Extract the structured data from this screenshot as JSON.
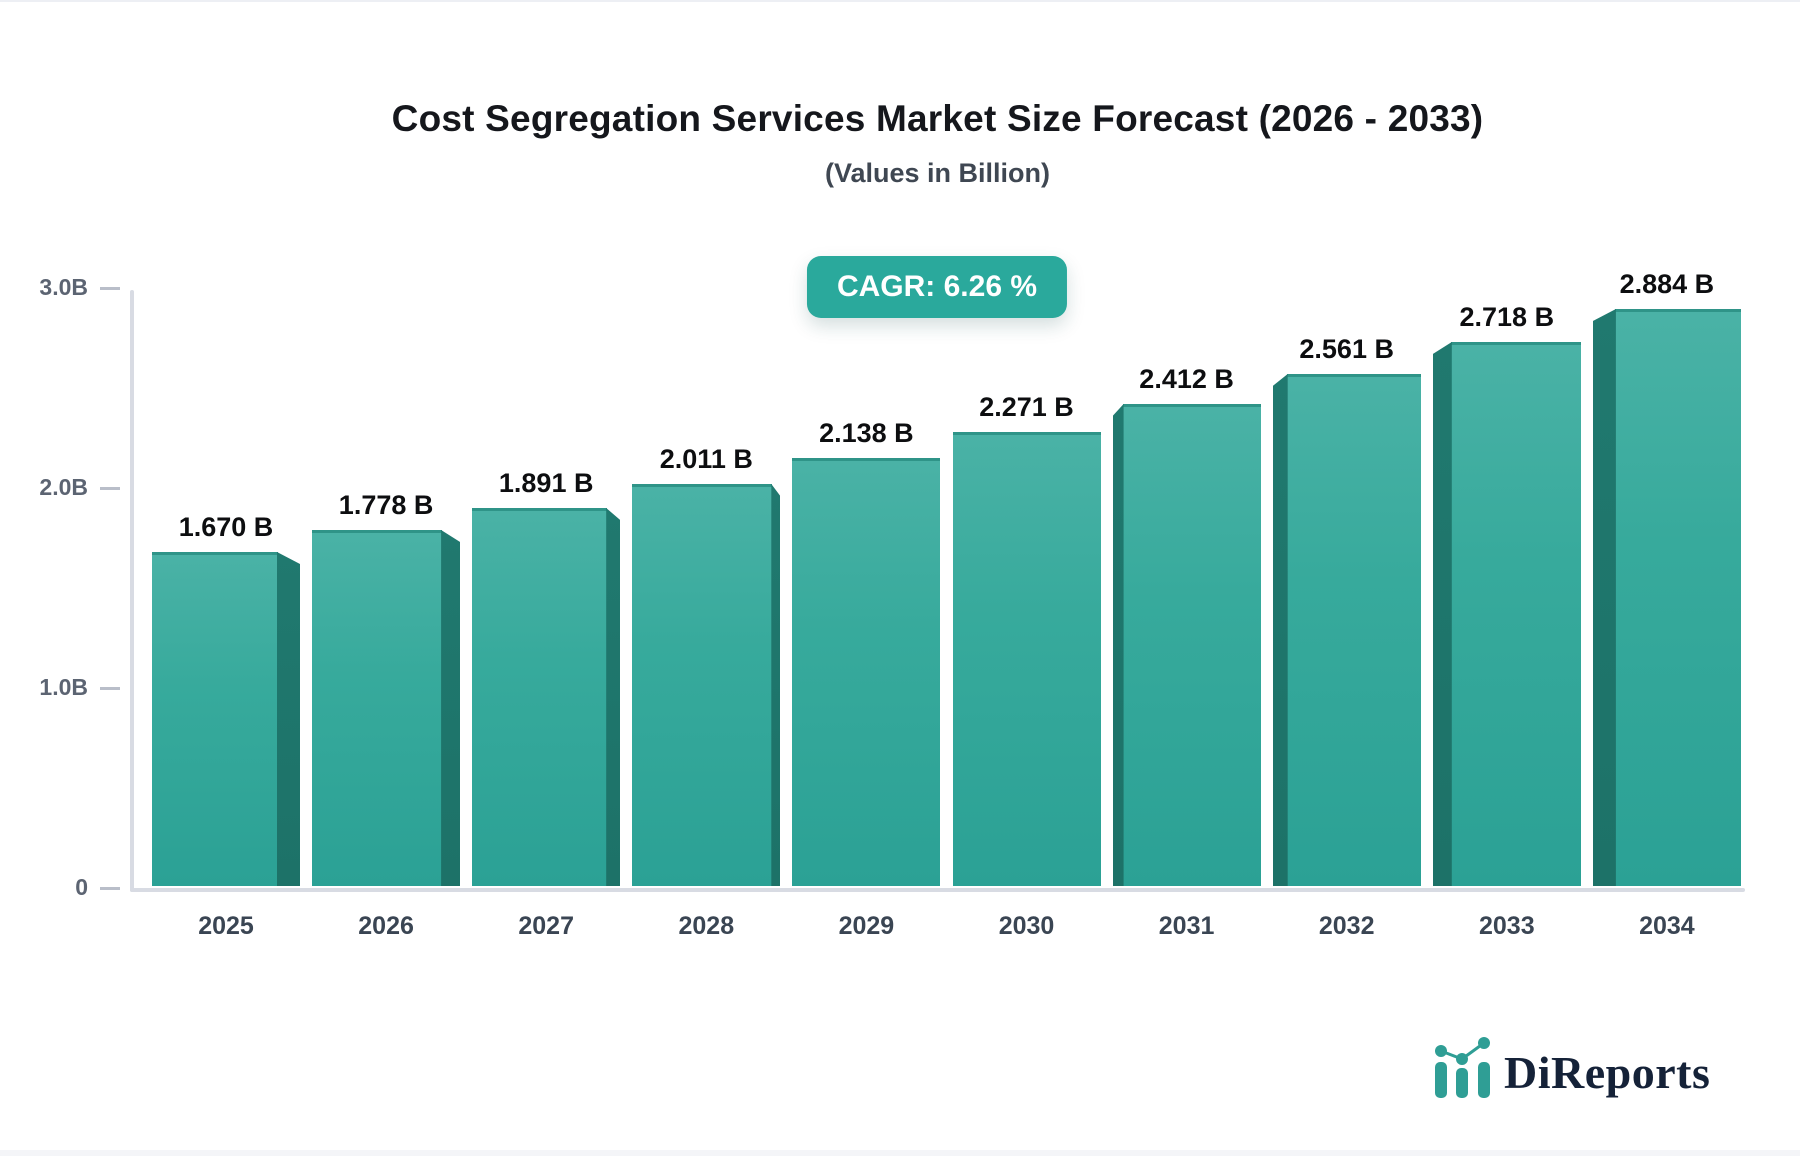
{
  "header": {
    "title": "Cost Segregation Services Market Size Forecast (2026 - 2033)",
    "subtitle": "(Values in Billion)",
    "cagr_label": "CAGR: 6.26 %"
  },
  "chart_data": {
    "type": "bar",
    "title": "Cost Segregation Services Market Size Forecast (2026 - 2033)",
    "subtitle": "(Values in Billion)",
    "unit": "Billion",
    "categories": [
      "2025",
      "2026",
      "2027",
      "2028",
      "2029",
      "2030",
      "2031",
      "2032",
      "2033",
      "2034"
    ],
    "values": [
      1.67,
      1.778,
      1.891,
      2.011,
      2.138,
      2.271,
      2.412,
      2.561,
      2.718,
      2.884
    ],
    "value_labels": [
      "1.670 B",
      "1.778 B",
      "1.891 B",
      "2.011 B",
      "2.138 B",
      "2.271 B",
      "2.412 B",
      "2.561 B",
      "2.718 B",
      "2.884 B"
    ],
    "cagr_percent": 6.26,
    "xlabel": "",
    "ylabel": "",
    "ylim": [
      0,
      3.0
    ],
    "yticks": [
      {
        "label": "3.0B",
        "value": 3.0
      },
      {
        "label": "2.0B",
        "value": 2.0
      },
      {
        "label": "1.0B",
        "value": 1.0
      },
      {
        "label": "0",
        "value": 0
      }
    ],
    "grid": false,
    "legend": false,
    "colors": {
      "bar_face": "#35a99b",
      "bar_side": "#1e776d",
      "accent": "#2aa99c",
      "axis": "#d8dbe3",
      "label_text": "#0d0e10",
      "tick_text": "#5c6472"
    }
  },
  "footer": {
    "logo_text": "DiReports"
  }
}
